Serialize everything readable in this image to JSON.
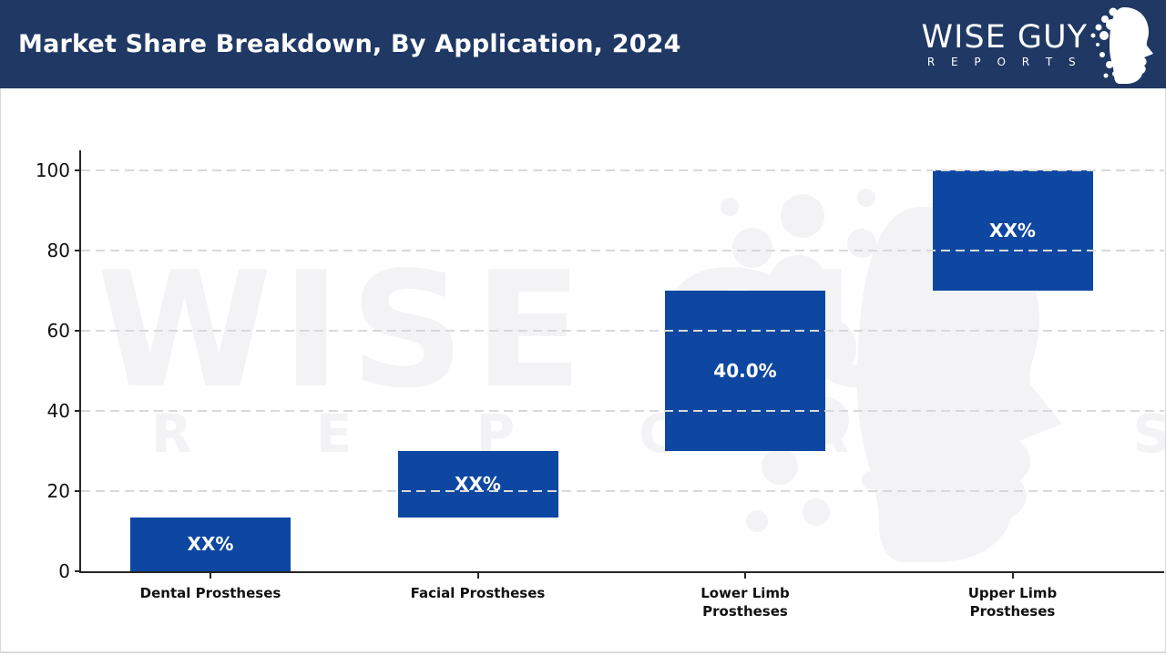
{
  "header": {
    "title": "Market Share Breakdown, By Application, 2024",
    "bg_color": "#1f3864",
    "logo": {
      "name": "Wise Guy Reports",
      "line1": "WISE GUY",
      "line2": "R E P O R T S"
    }
  },
  "watermark": {
    "line1": "WISE GUY",
    "line2": "R E P O R T S"
  },
  "chart_data": {
    "type": "bar",
    "subtype": "floating-segment market-share bars (waterfall style)",
    "title": "Market Share Breakdown, By Application, 2024",
    "categories": [
      "Dental Prostheses",
      "Facial Prostheses",
      "Lower Limb\nProstheses",
      "Upper Limb\nProstheses"
    ],
    "bars": [
      {
        "category": "Dental Prostheses",
        "start": 0,
        "end": 13.5,
        "label": "XX%"
      },
      {
        "category": "Facial Prostheses",
        "start": 13.5,
        "end": 30,
        "label": "XX%"
      },
      {
        "category": "Lower Limb Prostheses",
        "start": 30,
        "end": 70,
        "label": "40.0%"
      },
      {
        "category": "Upper Limb Prostheses",
        "start": 70,
        "end": 100,
        "label": "XX%"
      }
    ],
    "ylim": [
      0,
      100
    ],
    "yticks": [
      0,
      20,
      40,
      60,
      80,
      100
    ],
    "xlabel": "",
    "ylabel": "",
    "legend": "none",
    "grid": "horizontal dashed lines drawn over bars",
    "bar_color": "#0d47a1",
    "bar_label_color": "#ffffff",
    "axis_color": "#262626",
    "grid_color": "#d9d9d9"
  }
}
